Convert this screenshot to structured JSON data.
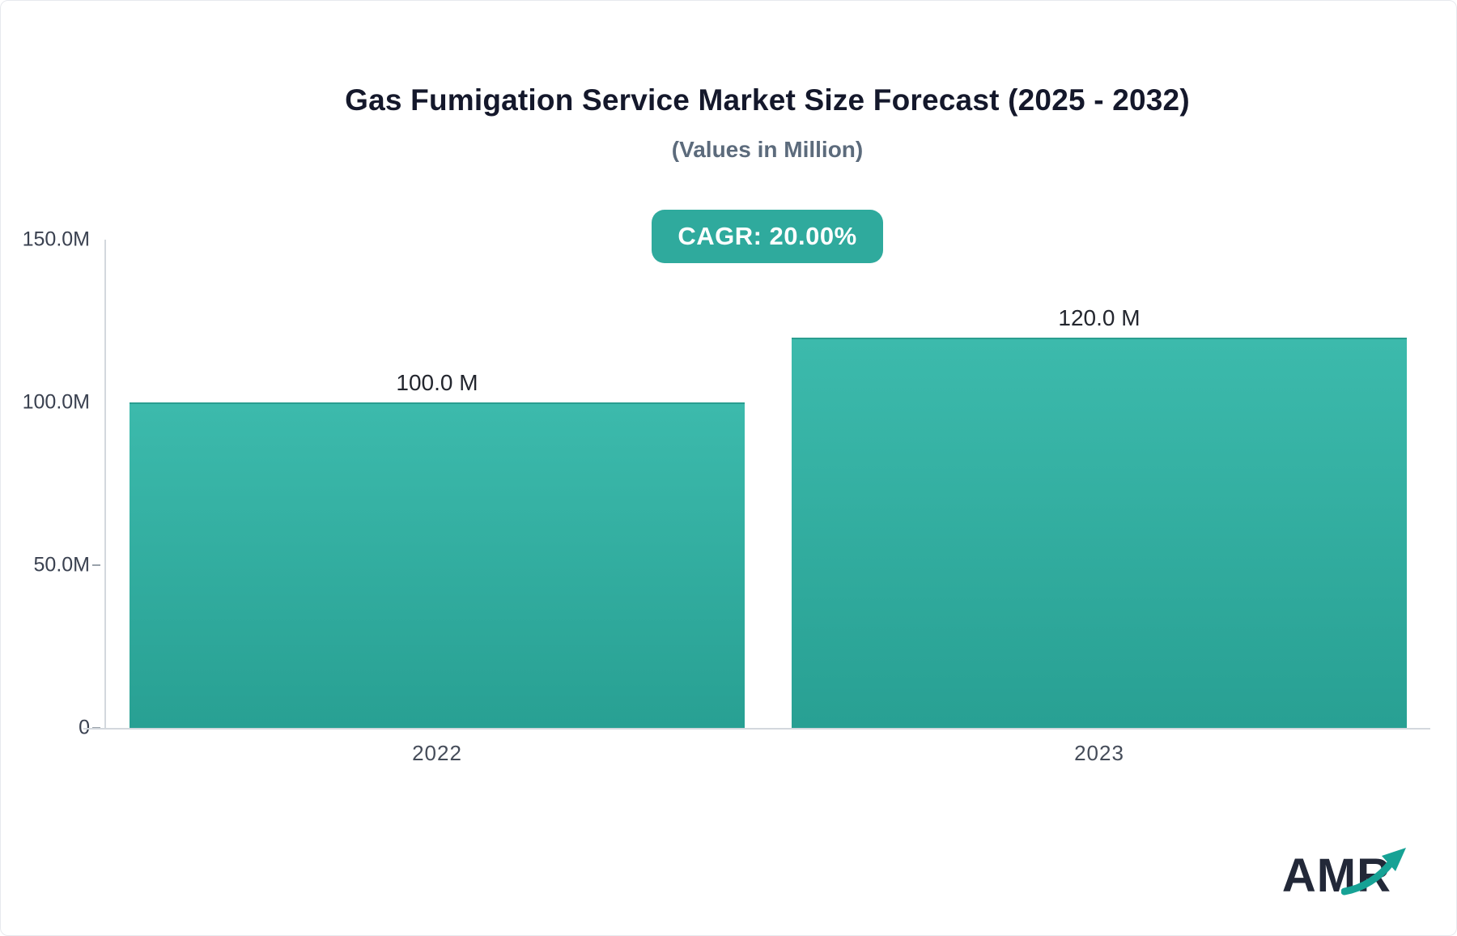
{
  "header": {
    "title": "Gas Fumigation Service Market Size Forecast (2025 - 2032)",
    "subtitle": "(Values in Million)",
    "cagr_badge": "CAGR: 20.00%"
  },
  "chart_data": {
    "type": "bar",
    "title": "Gas Fumigation Service Market Size Forecast (2025 - 2032)",
    "subtitle": "(Values in Million)",
    "unit": "Million",
    "categories": [
      "2022",
      "2023"
    ],
    "values": [
      100.0,
      120.0
    ],
    "value_labels": [
      "100.0 M",
      "120.0 M"
    ],
    "cagr": "20.00%",
    "ylim": [
      0,
      150
    ],
    "ytick_labels": [
      "150.0M",
      "100.0M",
      "50.0M",
      "0"
    ],
    "grid": false,
    "legend": false
  },
  "colors": {
    "bar_top": "#3cbaac",
    "bar_bottom": "#28a093",
    "badge_bg": "#2faa9d",
    "axis": "#d3d8dd"
  },
  "branding": {
    "logo_text": "AMR"
  }
}
